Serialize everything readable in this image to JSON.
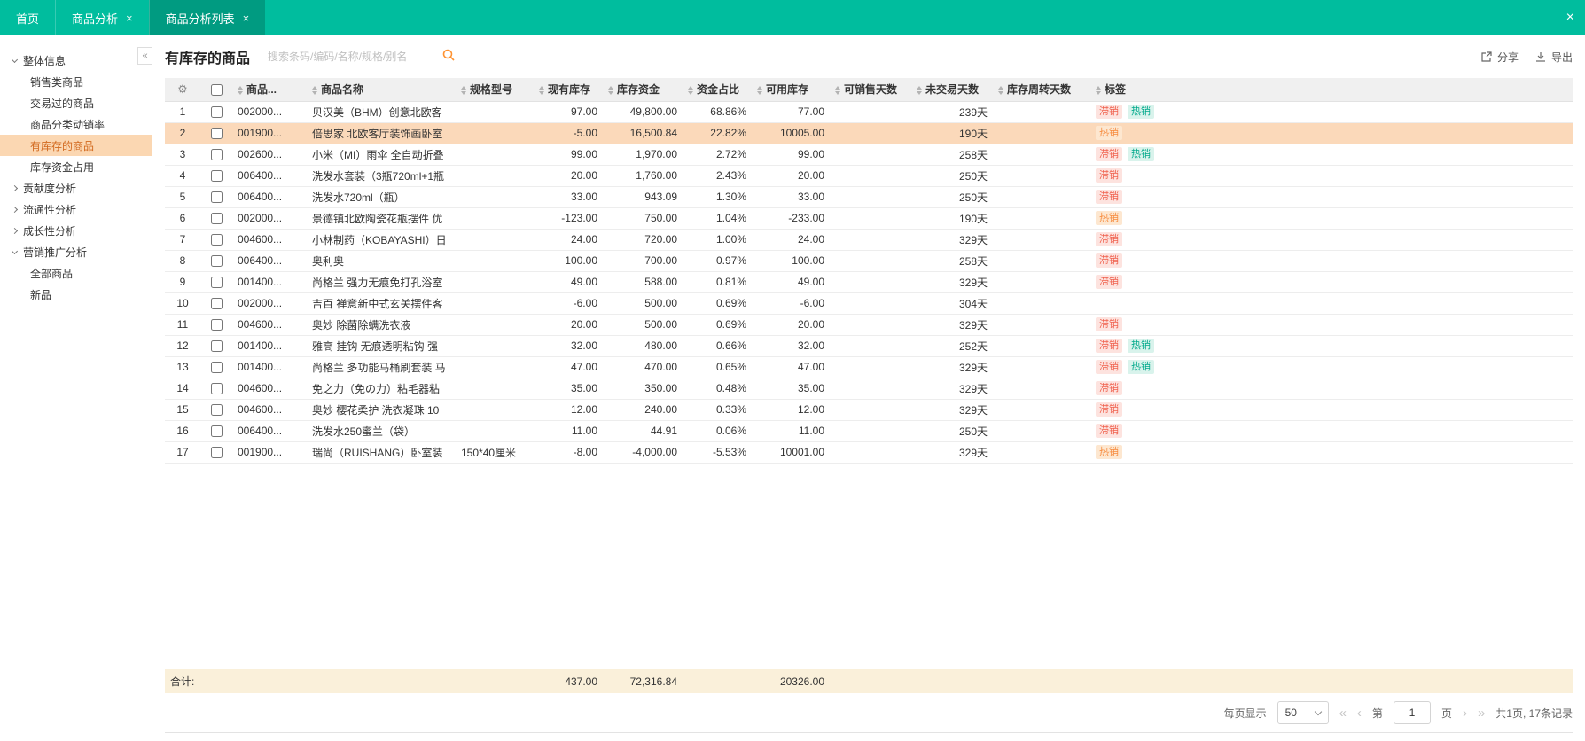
{
  "topbar": {
    "close_glyph": "×",
    "tabs": [
      {
        "label": "首页",
        "closable": false,
        "active": false
      },
      {
        "label": "商品分析",
        "closable": true,
        "active": false
      },
      {
        "label": "商品分析列表",
        "closable": true,
        "active": true
      }
    ]
  },
  "sidebar": {
    "collapse_glyph": "«",
    "items": [
      {
        "label": "整体信息",
        "type": "group",
        "expanded": true,
        "active": false
      },
      {
        "label": "销售类商品",
        "type": "child",
        "active": false
      },
      {
        "label": "交易过的商品",
        "type": "child",
        "active": false
      },
      {
        "label": "商品分类动销率",
        "type": "child",
        "active": false
      },
      {
        "label": "有库存的商品",
        "type": "child",
        "active": true
      },
      {
        "label": "库存资金占用",
        "type": "child",
        "active": false
      },
      {
        "label": "贡献度分析",
        "type": "group",
        "expanded": false,
        "active": false
      },
      {
        "label": "流通性分析",
        "type": "group",
        "expanded": false,
        "active": false
      },
      {
        "label": "成长性分析",
        "type": "group",
        "expanded": false,
        "active": false
      },
      {
        "label": "营销推广分析",
        "type": "group",
        "expanded": true,
        "active": false
      },
      {
        "label": "全部商品",
        "type": "child",
        "active": false
      },
      {
        "label": "新品",
        "type": "child",
        "active": false
      }
    ]
  },
  "toolbar": {
    "title": "有库存的商品",
    "search_placeholder": "搜索条码/编码/名称/规格/别名",
    "share_label": "分享",
    "export_label": "导出"
  },
  "table": {
    "columns": [
      "商品...",
      "商品名称",
      "规格型号",
      "现有库存",
      "库存资金",
      "资金占比",
      "可用库存",
      "可销售天数",
      "未交易天数",
      "库存周转天数",
      "标签"
    ],
    "rows": [
      {
        "index": "1",
        "code": "002000...",
        "name": "贝汉美（BHM）创意北欧客",
        "spec": "",
        "stock": "97.00",
        "capital": "49,800.00",
        "ratio": "68.86%",
        "available": "77.00",
        "sell_days": "",
        "no_trade_days": "239天",
        "turnover_days": "",
        "selected": false,
        "tags": [
          {
            "label": "滞销",
            "type": "red"
          },
          {
            "label": "热销",
            "type": "teal"
          }
        ]
      },
      {
        "index": "2",
        "code": "001900...",
        "name": "倍思家 北欧客厅装饰画卧室",
        "spec": "",
        "stock": "-5.00",
        "capital": "16,500.84",
        "ratio": "22.82%",
        "available": "10005.00",
        "sell_days": "",
        "no_trade_days": "190天",
        "turnover_days": "",
        "selected": true,
        "tags": [
          {
            "label": "热销",
            "type": "orange"
          }
        ]
      },
      {
        "index": "3",
        "code": "002600...",
        "name": "小米（MI）雨伞 全自动折叠",
        "spec": "",
        "stock": "99.00",
        "capital": "1,970.00",
        "ratio": "2.72%",
        "available": "99.00",
        "sell_days": "",
        "no_trade_days": "258天",
        "turnover_days": "",
        "selected": false,
        "tags": [
          {
            "label": "滞销",
            "type": "red"
          },
          {
            "label": "热销",
            "type": "teal"
          }
        ]
      },
      {
        "index": "4",
        "code": "006400...",
        "name": "洗发水套装（3瓶720ml+1瓶",
        "spec": "",
        "stock": "20.00",
        "capital": "1,760.00",
        "ratio": "2.43%",
        "available": "20.00",
        "sell_days": "",
        "no_trade_days": "250天",
        "turnover_days": "",
        "selected": false,
        "tags": [
          {
            "label": "滞销",
            "type": "red"
          }
        ]
      },
      {
        "index": "5",
        "code": "006400...",
        "name": "洗发水720ml（瓶）",
        "spec": "",
        "stock": "33.00",
        "capital": "943.09",
        "ratio": "1.30%",
        "available": "33.00",
        "sell_days": "",
        "no_trade_days": "250天",
        "turnover_days": "",
        "selected": false,
        "tags": [
          {
            "label": "滞销",
            "type": "red"
          }
        ]
      },
      {
        "index": "6",
        "code": "002000...",
        "name": "景德镇北欧陶瓷花瓶摆件 优",
        "spec": "",
        "stock": "-123.00",
        "capital": "750.00",
        "ratio": "1.04%",
        "available": "-233.00",
        "sell_days": "",
        "no_trade_days": "190天",
        "turnover_days": "",
        "selected": false,
        "tags": [
          {
            "label": "热销",
            "type": "orange"
          }
        ]
      },
      {
        "index": "7",
        "code": "004600...",
        "name": "小林制药（KOBAYASHI）日",
        "spec": "",
        "stock": "24.00",
        "capital": "720.00",
        "ratio": "1.00%",
        "available": "24.00",
        "sell_days": "",
        "no_trade_days": "329天",
        "turnover_days": "",
        "selected": false,
        "tags": [
          {
            "label": "滞销",
            "type": "red"
          }
        ]
      },
      {
        "index": "8",
        "code": "006400...",
        "name": "奥利奥",
        "spec": "",
        "stock": "100.00",
        "capital": "700.00",
        "ratio": "0.97%",
        "available": "100.00",
        "sell_days": "",
        "no_trade_days": "258天",
        "turnover_days": "",
        "selected": false,
        "tags": [
          {
            "label": "滞销",
            "type": "red"
          }
        ]
      },
      {
        "index": "9",
        "code": "001400...",
        "name": "尚格兰 强力无痕免打孔浴室",
        "spec": "",
        "stock": "49.00",
        "capital": "588.00",
        "ratio": "0.81%",
        "available": "49.00",
        "sell_days": "",
        "no_trade_days": "329天",
        "turnover_days": "",
        "selected": false,
        "tags": [
          {
            "label": "滞销",
            "type": "red"
          }
        ]
      },
      {
        "index": "10",
        "code": "002000...",
        "name": "吉百 禅意新中式玄关摆件客",
        "spec": "",
        "stock": "-6.00",
        "capital": "500.00",
        "ratio": "0.69%",
        "available": "-6.00",
        "sell_days": "",
        "no_trade_days": "304天",
        "turnover_days": "",
        "selected": false,
        "tags": []
      },
      {
        "index": "11",
        "code": "004600...",
        "name": "奥妙 除菌除螨洗衣液",
        "spec": "",
        "stock": "20.00",
        "capital": "500.00",
        "ratio": "0.69%",
        "available": "20.00",
        "sell_days": "",
        "no_trade_days": "329天",
        "turnover_days": "",
        "selected": false,
        "tags": [
          {
            "label": "滞销",
            "type": "red"
          }
        ]
      },
      {
        "index": "12",
        "code": "001400...",
        "name": "雅高 挂钩 无痕透明粘钩 强",
        "spec": "",
        "stock": "32.00",
        "capital": "480.00",
        "ratio": "0.66%",
        "available": "32.00",
        "sell_days": "",
        "no_trade_days": "252天",
        "turnover_days": "",
        "selected": false,
        "tags": [
          {
            "label": "滞销",
            "type": "red"
          },
          {
            "label": "热销",
            "type": "teal"
          }
        ]
      },
      {
        "index": "13",
        "code": "001400...",
        "name": "尚格兰 多功能马桶刷套装 马",
        "spec": "",
        "stock": "47.00",
        "capital": "470.00",
        "ratio": "0.65%",
        "available": "47.00",
        "sell_days": "",
        "no_trade_days": "329天",
        "turnover_days": "",
        "selected": false,
        "tags": [
          {
            "label": "滞销",
            "type": "red"
          },
          {
            "label": "热销",
            "type": "teal"
          }
        ]
      },
      {
        "index": "14",
        "code": "004600...",
        "name": "免之力（免の力）粘毛器粘",
        "spec": "",
        "stock": "35.00",
        "capital": "350.00",
        "ratio": "0.48%",
        "available": "35.00",
        "sell_days": "",
        "no_trade_days": "329天",
        "turnover_days": "",
        "selected": false,
        "tags": [
          {
            "label": "滞销",
            "type": "red"
          }
        ]
      },
      {
        "index": "15",
        "code": "004600...",
        "name": "奥妙 樱花柔护 洗衣凝珠 10",
        "spec": "",
        "stock": "12.00",
        "capital": "240.00",
        "ratio": "0.33%",
        "available": "12.00",
        "sell_days": "",
        "no_trade_days": "329天",
        "turnover_days": "",
        "selected": false,
        "tags": [
          {
            "label": "滞销",
            "type": "red"
          }
        ]
      },
      {
        "index": "16",
        "code": "006400...",
        "name": "洗发水250蜜兰（袋）",
        "spec": "",
        "stock": "11.00",
        "capital": "44.91",
        "ratio": "0.06%",
        "available": "11.00",
        "sell_days": "",
        "no_trade_days": "250天",
        "turnover_days": "",
        "selected": false,
        "tags": [
          {
            "label": "滞销",
            "type": "red"
          }
        ]
      },
      {
        "index": "17",
        "code": "001900...",
        "name": "瑞尚（RUISHANG）卧室装",
        "spec": "150*40厘米",
        "stock": "-8.00",
        "capital": "-4,000.00",
        "ratio": "-5.53%",
        "available": "10001.00",
        "sell_days": "",
        "no_trade_days": "329天",
        "turnover_days": "",
        "selected": false,
        "tags": [
          {
            "label": "热销",
            "type": "orange"
          }
        ]
      }
    ],
    "totals": {
      "label": "合计:",
      "stock": "437.00",
      "capital": "72,316.84",
      "available": "20326.00"
    }
  },
  "pagination": {
    "page_size_label": "每页显示",
    "page_size": "50",
    "first_icon": "«",
    "prev_icon": "‹",
    "next_icon": "›",
    "last_icon": "»",
    "page_prefix": "第",
    "page_value": "1",
    "page_suffix": "页",
    "summary": "共1页, 17条记录"
  }
}
